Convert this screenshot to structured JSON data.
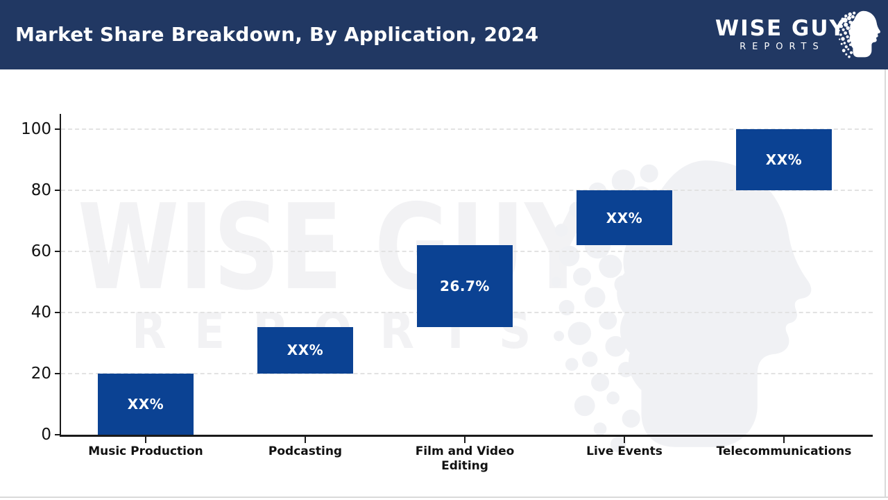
{
  "header": {
    "title": "Market Share Breakdown, By Application, 2024",
    "bg_color": "#213863",
    "logo": {
      "line1": "WISE GUY",
      "line2": "REPORTS"
    }
  },
  "watermark": {
    "line1": "WISE GUY",
    "line2": "REPORTS"
  },
  "chart_data": {
    "type": "bar",
    "subtype": "floating-waterfall",
    "title": "Market Share Breakdown, By Application, 2024",
    "categories": [
      "Music Production",
      "Podcasting",
      "Film and Video Editing",
      "Live Events",
      "Telecommunications"
    ],
    "series": [
      {
        "category": "Music Production",
        "start": 0,
        "end": 20,
        "label": "XX%"
      },
      {
        "category": "Podcasting",
        "start": 20,
        "end": 35.3,
        "label": "XX%"
      },
      {
        "category": "Film and Video Editing",
        "start": 35.3,
        "end": 62,
        "label": "26.7%"
      },
      {
        "category": "Live Events",
        "start": 62,
        "end": 80,
        "label": "XX%"
      },
      {
        "category": "Telecommunications",
        "start": 80,
        "end": 100,
        "label": "XX%"
      }
    ],
    "xlabel": "",
    "ylabel": "",
    "ylim": [
      0,
      100
    ],
    "yticks": [
      0,
      20,
      40,
      60,
      80,
      100
    ],
    "grid": "horizontal-dashed",
    "legend": "none",
    "bar_color": "#0b4293",
    "bar_label_color": "#ffffff",
    "axis_color": "#1a1a1a",
    "gridline_color": "#e2e2e2",
    "watermark_color": "#f2f2f4"
  }
}
